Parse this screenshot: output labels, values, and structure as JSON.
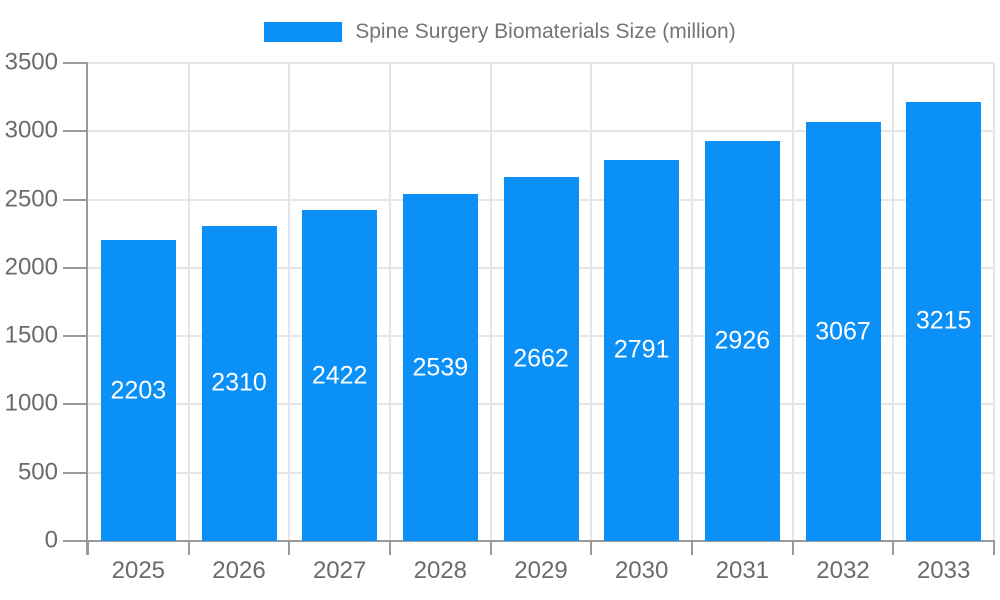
{
  "legend": {
    "label": "Spine Surgery Biomaterials Size (million)"
  },
  "chart_data": {
    "type": "bar",
    "title": "Spine Surgery Biomaterials Size (million)",
    "categories": [
      "2025",
      "2026",
      "2027",
      "2028",
      "2029",
      "2030",
      "2031",
      "2032",
      "2033"
    ],
    "values": [
      2203,
      2310,
      2422,
      2539,
      2662,
      2791,
      2926,
      3067,
      3215
    ],
    "xlabel": "",
    "ylabel": "",
    "ylim": [
      0,
      3500
    ],
    "y_ticks": [
      0,
      500,
      1000,
      1500,
      2000,
      2500,
      3000,
      3500
    ],
    "grid": true,
    "legend_position": "top-center",
    "bar_value_labels_inside": true,
    "colors": {
      "bar": "#0a90f7",
      "bar_label": "#ffffff",
      "grid": "#e6e6e6",
      "axis": "#9a9a9a",
      "tick_label": "#6b6b6b",
      "title": "#757575",
      "background": "#ffffff"
    }
  }
}
